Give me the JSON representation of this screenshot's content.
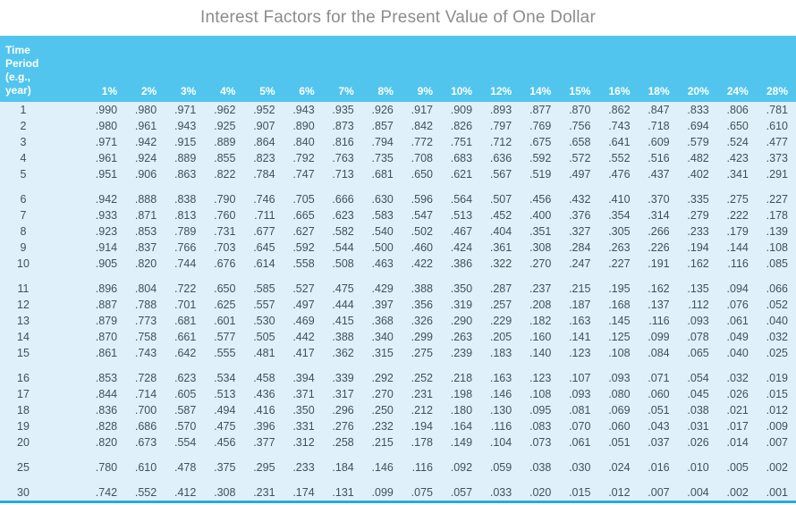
{
  "title": "Interest Factors for the Present Value of One Dollar",
  "colors": {
    "header_bg": "#51C5EE",
    "header_text": "#FFFFFF",
    "body_bg": "#DFF0FA",
    "body_text": "#42505C",
    "title_text": "#8A8C8E",
    "bottom_rule": "#2AA9E0"
  },
  "chart_data": {
    "type": "table",
    "title": "Interest Factors for the Present Value of One Dollar",
    "row_header_label": "Time Period (e.g., year)",
    "row_header_lines": [
      "Time",
      "Period",
      "(e.g.,",
      "year)"
    ],
    "columns": [
      "1%",
      "2%",
      "3%",
      "4%",
      "5%",
      "6%",
      "7%",
      "8%",
      "9%",
      "10%",
      "12%",
      "14%",
      "15%",
      "16%",
      "18%",
      "20%",
      "24%",
      "28%"
    ],
    "row_groups": [
      {
        "rows": [
          {
            "period": "1",
            "values": [
              ".990",
              ".980",
              ".971",
              ".962",
              ".952",
              ".943",
              ".935",
              ".926",
              ".917",
              ".909",
              ".893",
              ".877",
              ".870",
              ".862",
              ".847",
              ".833",
              ".806",
              ".781"
            ]
          },
          {
            "period": "2",
            "values": [
              ".980",
              ".961",
              ".943",
              ".925",
              ".907",
              ".890",
              ".873",
              ".857",
              ".842",
              ".826",
              ".797",
              ".769",
              ".756",
              ".743",
              ".718",
              ".694",
              ".650",
              ".610"
            ]
          },
          {
            "period": "3",
            "values": [
              ".971",
              ".942",
              ".915",
              ".889",
              ".864",
              ".840",
              ".816",
              ".794",
              ".772",
              ".751",
              ".712",
              ".675",
              ".658",
              ".641",
              ".609",
              ".579",
              ".524",
              ".477"
            ]
          },
          {
            "period": "4",
            "values": [
              ".961",
              ".924",
              ".889",
              ".855",
              ".823",
              ".792",
              ".763",
              ".735",
              ".708",
              ".683",
              ".636",
              ".592",
              ".572",
              ".552",
              ".516",
              ".482",
              ".423",
              ".373"
            ]
          },
          {
            "period": "5",
            "values": [
              ".951",
              ".906",
              ".863",
              ".822",
              ".784",
              ".747",
              ".713",
              ".681",
              ".650",
              ".621",
              ".567",
              ".519",
              ".497",
              ".476",
              ".437",
              ".402",
              ".341",
              ".291"
            ]
          }
        ]
      },
      {
        "rows": [
          {
            "period": "6",
            "values": [
              ".942",
              ".888",
              ".838",
              ".790",
              ".746",
              ".705",
              ".666",
              ".630",
              ".596",
              ".564",
              ".507",
              ".456",
              ".432",
              ".410",
              ".370",
              ".335",
              ".275",
              ".227"
            ]
          },
          {
            "period": "7",
            "values": [
              ".933",
              ".871",
              ".813",
              ".760",
              ".711",
              ".665",
              ".623",
              ".583",
              ".547",
              ".513",
              ".452",
              ".400",
              ".376",
              ".354",
              ".314",
              ".279",
              ".222",
              ".178"
            ]
          },
          {
            "period": "8",
            "values": [
              ".923",
              ".853",
              ".789",
              ".731",
              ".677",
              ".627",
              ".582",
              ".540",
              ".502",
              ".467",
              ".404",
              ".351",
              ".327",
              ".305",
              ".266",
              ".233",
              ".179",
              ".139"
            ]
          },
          {
            "period": "9",
            "values": [
              ".914",
              ".837",
              ".766",
              ".703",
              ".645",
              ".592",
              ".544",
              ".500",
              ".460",
              ".424",
              ".361",
              ".308",
              ".284",
              ".263",
              ".226",
              ".194",
              ".144",
              ".108"
            ]
          },
          {
            "period": "10",
            "values": [
              ".905",
              ".820",
              ".744",
              ".676",
              ".614",
              ".558",
              ".508",
              ".463",
              ".422",
              ".386",
              ".322",
              ".270",
              ".247",
              ".227",
              ".191",
              ".162",
              ".116",
              ".085"
            ]
          }
        ]
      },
      {
        "rows": [
          {
            "period": "11",
            "values": [
              ".896",
              ".804",
              ".722",
              ".650",
              ".585",
              ".527",
              ".475",
              ".429",
              ".388",
              ".350",
              ".287",
              ".237",
              ".215",
              ".195",
              ".162",
              ".135",
              ".094",
              ".066"
            ]
          },
          {
            "period": "12",
            "values": [
              ".887",
              ".788",
              ".701",
              ".625",
              ".557",
              ".497",
              ".444",
              ".397",
              ".356",
              ".319",
              ".257",
              ".208",
              ".187",
              ".168",
              ".137",
              ".112",
              ".076",
              ".052"
            ]
          },
          {
            "period": "13",
            "values": [
              ".879",
              ".773",
              ".681",
              ".601",
              ".530",
              ".469",
              ".415",
              ".368",
              ".326",
              ".290",
              ".229",
              ".182",
              ".163",
              ".145",
              ".116",
              ".093",
              ".061",
              ".040"
            ]
          },
          {
            "period": "14",
            "values": [
              ".870",
              ".758",
              ".661",
              ".577",
              ".505",
              ".442",
              ".388",
              ".340",
              ".299",
              ".263",
              ".205",
              ".160",
              ".141",
              ".125",
              ".099",
              ".078",
              ".049",
              ".032"
            ]
          },
          {
            "period": "15",
            "values": [
              ".861",
              ".743",
              ".642",
              ".555",
              ".481",
              ".417",
              ".362",
              ".315",
              ".275",
              ".239",
              ".183",
              ".140",
              ".123",
              ".108",
              ".084",
              ".065",
              ".040",
              ".025"
            ]
          }
        ]
      },
      {
        "rows": [
          {
            "period": "16",
            "values": [
              ".853",
              ".728",
              ".623",
              ".534",
              ".458",
              ".394",
              ".339",
              ".292",
              ".252",
              ".218",
              ".163",
              ".123",
              ".107",
              ".093",
              ".071",
              ".054",
              ".032",
              ".019"
            ]
          },
          {
            "period": "17",
            "values": [
              ".844",
              ".714",
              ".605",
              ".513",
              ".436",
              ".371",
              ".317",
              ".270",
              ".231",
              ".198",
              ".146",
              ".108",
              ".093",
              ".080",
              ".060",
              ".045",
              ".026",
              ".015"
            ]
          },
          {
            "period": "18",
            "values": [
              ".836",
              ".700",
              ".587",
              ".494",
              ".416",
              ".350",
              ".296",
              ".250",
              ".212",
              ".180",
              ".130",
              ".095",
              ".081",
              ".069",
              ".051",
              ".038",
              ".021",
              ".012"
            ]
          },
          {
            "period": "19",
            "values": [
              ".828",
              ".686",
              ".570",
              ".475",
              ".396",
              ".331",
              ".276",
              ".232",
              ".194",
              ".164",
              ".116",
              ".083",
              ".070",
              ".060",
              ".043",
              ".031",
              ".017",
              ".009"
            ]
          },
          {
            "period": "20",
            "values": [
              ".820",
              ".673",
              ".554",
              ".456",
              ".377",
              ".312",
              ".258",
              ".215",
              ".178",
              ".149",
              ".104",
              ".073",
              ".061",
              ".051",
              ".037",
              ".026",
              ".014",
              ".007"
            ]
          }
        ]
      },
      {
        "rows": [
          {
            "period": "25",
            "values": [
              ".780",
              ".610",
              ".478",
              ".375",
              ".295",
              ".233",
              ".184",
              ".146",
              ".116",
              ".092",
              ".059",
              ".038",
              ".030",
              ".024",
              ".016",
              ".010",
              ".005",
              ".002"
            ]
          }
        ]
      },
      {
        "rows": [
          {
            "period": "30",
            "values": [
              ".742",
              ".552",
              ".412",
              ".308",
              ".231",
              ".174",
              ".131",
              ".099",
              ".075",
              ".057",
              ".033",
              ".020",
              ".015",
              ".012",
              ".007",
              ".004",
              ".002",
              ".001"
            ]
          }
        ]
      }
    ]
  }
}
